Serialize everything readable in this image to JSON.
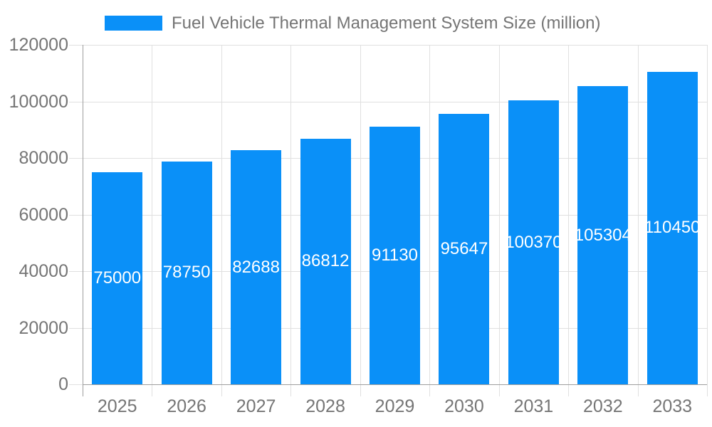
{
  "chart_data": {
    "type": "bar",
    "title": "Fuel Vehicle Thermal Management System Size (million)",
    "categories": [
      "2025",
      "2026",
      "2027",
      "2028",
      "2029",
      "2030",
      "2031",
      "2032",
      "2033"
    ],
    "values": [
      75000,
      78750,
      82688,
      86812,
      91130,
      95647,
      100370,
      105304,
      110450
    ],
    "xlabel": "",
    "ylabel": "",
    "ylim": [
      0,
      120000
    ],
    "yticks": [
      0,
      20000,
      40000,
      60000,
      80000,
      100000,
      120000
    ],
    "grid": true,
    "legend_position": "top-left",
    "legend_entries": [
      "Fuel Vehicle Thermal Management System Size (million)"
    ],
    "colors": {
      "bar": "#0a90f8",
      "value_label": "#ffffff",
      "axis_text": "#757575",
      "grid_line": "#e0e0e0",
      "axis_line": "#9e9e9e",
      "background": "#ffffff"
    }
  }
}
